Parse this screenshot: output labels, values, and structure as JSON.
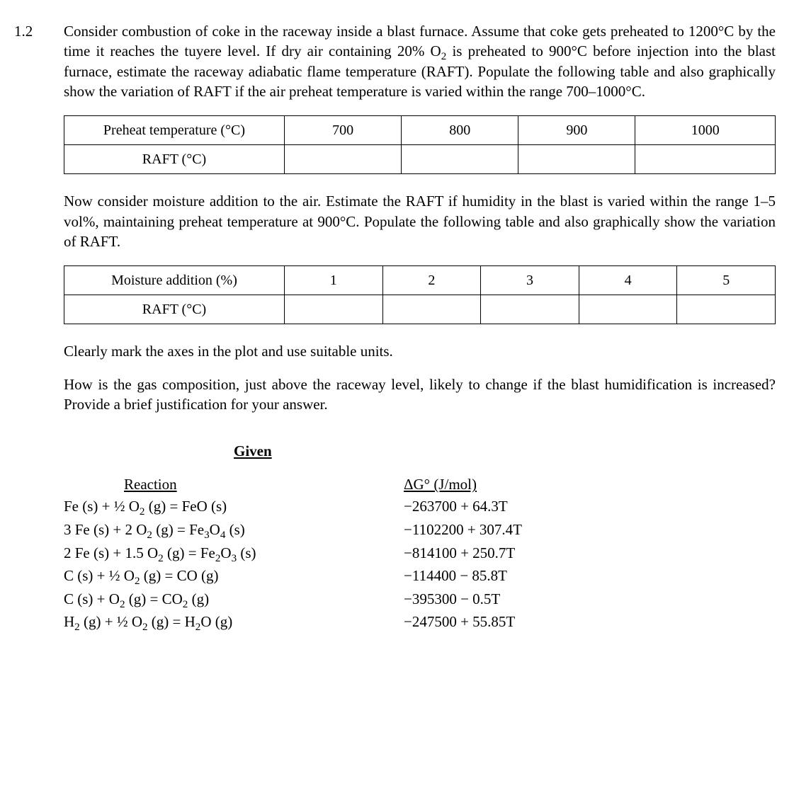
{
  "problem_number": "1.2",
  "paragraphs": {
    "p1": "Consider combustion of coke in the raceway inside a blast furnace. Assume that coke gets preheated to 1200°C by the time it reaches the tuyere level. If dry air containing 20% O₂ is preheated to 900°C before injection into the blast furnace, estimate the raceway adiabatic flame temperature (RAFT). Populate the following table and also graphically show the variation of RAFT if the air preheat temperature is varied within the range 700–1000°C.",
    "p2": "Now consider moisture addition to the air. Estimate the RAFT if humidity in the blast is varied within the range 1–5 vol%, maintaining preheat temperature at 900°C. Populate the following table and also graphically show the variation of RAFT.",
    "p3": "Clearly mark the axes in the plot and use suitable units.",
    "p4": "How is the gas composition, just above the raceway level, likely to change if the blast humidification is increased? Provide a brief justification for your answer."
  },
  "table1": {
    "row1_label": "Preheat temperature (°C)",
    "row1_values": [
      "700",
      "800",
      "900",
      "1000"
    ],
    "row2_label": "RAFT (°C)",
    "row2_values": [
      "",
      "",
      "",
      ""
    ]
  },
  "table2": {
    "row1_label": "Moisture addition (%)",
    "row1_values": [
      "1",
      "2",
      "3",
      "4",
      "5"
    ],
    "row2_label": "RAFT (°C)",
    "row2_values": [
      "",
      "",
      "",
      "",
      ""
    ]
  },
  "given": {
    "heading": "Given",
    "reaction_header": "Reaction",
    "dg_header": "ΔG° (J/mol)",
    "rows": [
      {
        "reaction_html": "Fe (s) + ½ O<sub>2</sub> (g) = FeO (s)",
        "dg": "−263700 + 64.3T"
      },
      {
        "reaction_html": "3 Fe (s) + 2 O<sub>2</sub> (g) = Fe<sub>3</sub>O<sub>4</sub> (s)",
        "dg": "−1102200 + 307.4T"
      },
      {
        "reaction_html": "2 Fe (s) + 1.5 O<sub>2</sub> (g) = Fe<sub>2</sub>O<sub>3</sub> (s)",
        "dg": "−814100 + 250.7T"
      },
      {
        "reaction_html": "C (s) + ½ O<sub>2</sub> (g) = CO (g)",
        "dg": "−114400 − 85.8T"
      },
      {
        "reaction_html": "C (s) + O<sub>2</sub> (g) = CO<sub>2</sub> (g)",
        "dg": "−395300 − 0.5T"
      },
      {
        "reaction_html": "H<sub>2</sub> (g) + ½ O<sub>2</sub> (g) = H<sub>2</sub>O (g)",
        "dg": "−247500 + 55.85T"
      }
    ]
  }
}
